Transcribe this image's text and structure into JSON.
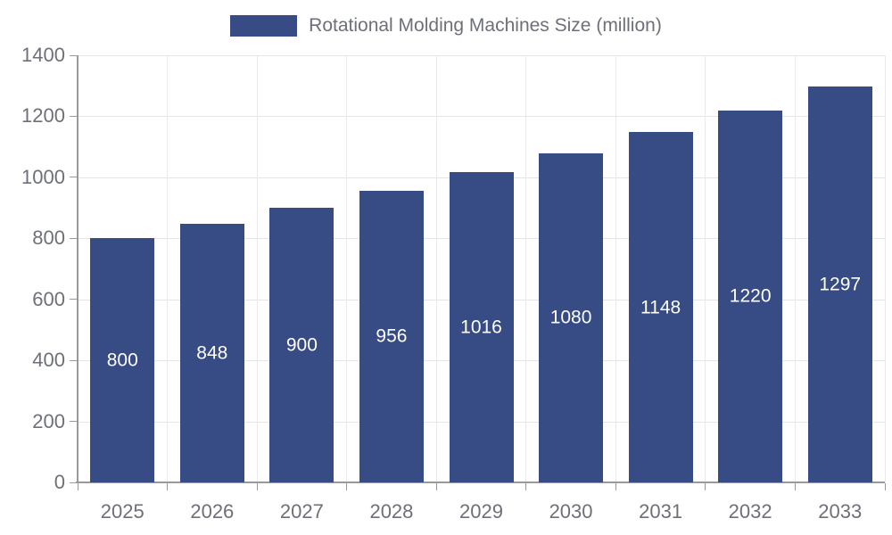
{
  "legend": {
    "label": "Rotational Molding Machines Size (million)"
  },
  "chart_data": {
    "type": "bar",
    "title": "Rotational Molding Machines Size (million)",
    "categories": [
      "2025",
      "2026",
      "2027",
      "2028",
      "2029",
      "2030",
      "2031",
      "2032",
      "2033"
    ],
    "values": [
      800,
      848,
      900,
      956,
      1016,
      1080,
      1148,
      1220,
      1297
    ],
    "xlabel": "",
    "ylabel": "",
    "ylim": [
      0,
      1400
    ],
    "yticks": [
      0,
      200,
      400,
      600,
      800,
      1000,
      1200,
      1400
    ],
    "grid": true,
    "legend_position": "top",
    "value_labels": "inside-center",
    "colors": {
      "bar": "#374B85",
      "value_label": "#FFFFFF",
      "axis_text": "#6E7079",
      "axis_line": "#999999",
      "grid_h": "#E3E5E8",
      "grid_v": "#E9EAEC"
    }
  }
}
